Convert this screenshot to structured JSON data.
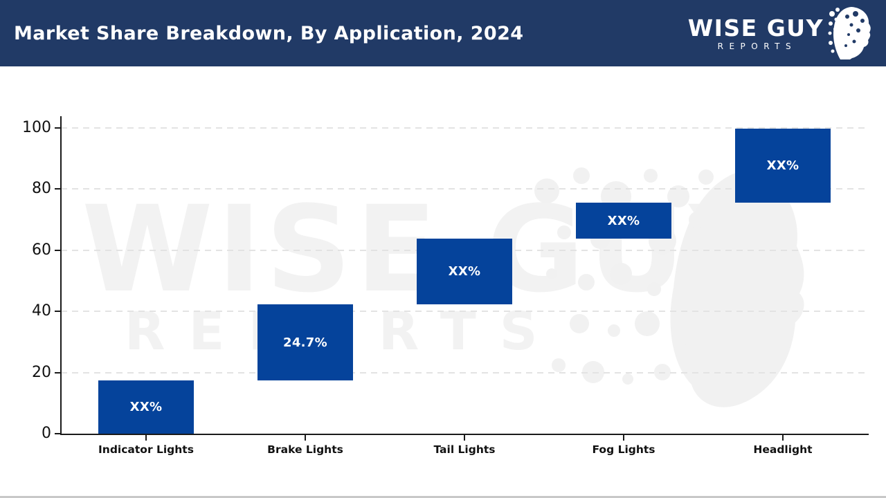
{
  "header": {
    "title": "Market Share Breakdown, By Application, 2024",
    "logo": {
      "line1": "WISE GUY",
      "line2": "REPORTS",
      "face_icon": "dotted-face-profile"
    }
  },
  "watermark": {
    "line1": "WISE GUY",
    "line2": "REPORTS",
    "face_icon": "dotted-face-profile"
  },
  "colors": {
    "header_bg": "#213a66",
    "bar": "#05439b",
    "grid": "#e3e3e3",
    "axis": "#1a1a1a",
    "bar_label": "#ffffff",
    "watermark": "#f2f2f2"
  },
  "chart_data": {
    "type": "bar",
    "subtype": "floating-segment-waterfall",
    "title": "Market Share Breakdown, By Application, 2024",
    "xlabel": "",
    "ylabel": "",
    "ylim": [
      0,
      105
    ],
    "y_ticks": [
      0,
      20,
      40,
      60,
      80,
      100
    ],
    "grid": "horizontal-dashed",
    "legend": "none",
    "categories": [
      "Indicator Lights",
      "Brake Lights",
      "Tail Lights",
      "Fog Lights",
      "Headlight"
    ],
    "segments": [
      {
        "category": "Indicator Lights",
        "start": 0,
        "end": 17.4,
        "label": "XX%"
      },
      {
        "category": "Brake Lights",
        "start": 17.5,
        "end": 42.2,
        "label": "24.7%"
      },
      {
        "category": "Tail Lights",
        "start": 42.3,
        "end": 63.8,
        "label": "XX%"
      },
      {
        "category": "Fog Lights",
        "start": 63.8,
        "end": 75.5,
        "label": "XX%"
      },
      {
        "category": "Headlight",
        "start": 75.6,
        "end": 99.8,
        "label": "XX%"
      }
    ]
  }
}
